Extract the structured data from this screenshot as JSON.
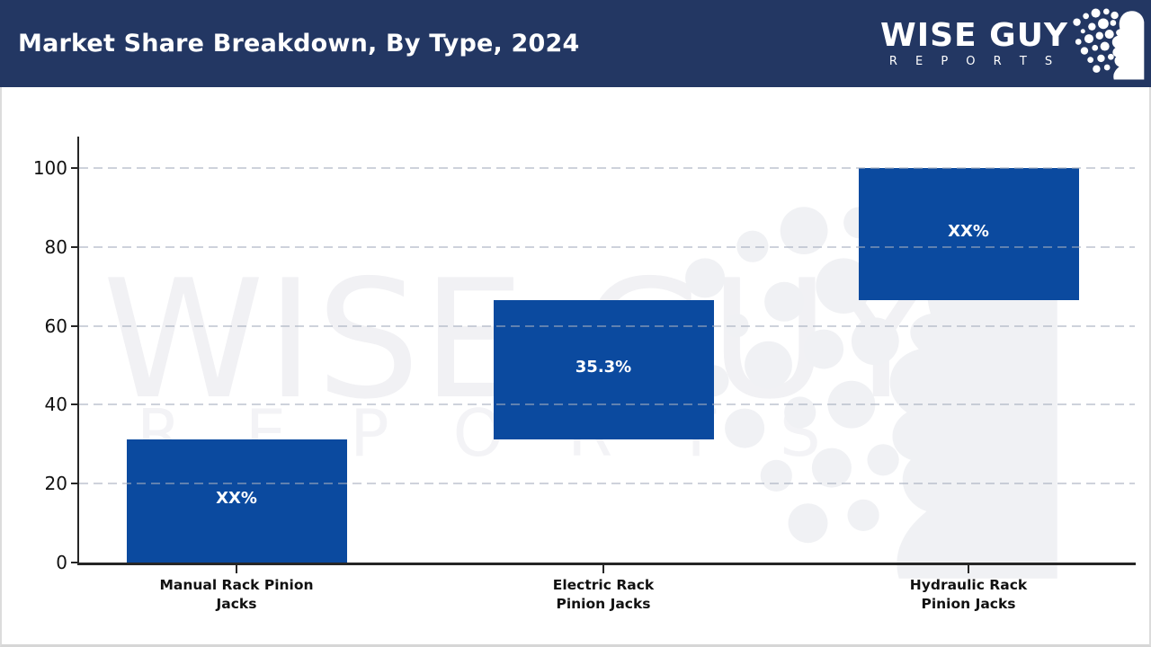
{
  "header": {
    "title": "Market Share Breakdown, By Type, 2024",
    "logo": {
      "name_line": "WISE GUY",
      "sub_line": "R E P O R T S"
    }
  },
  "watermark": {
    "name_line": "WISE GUY",
    "sub_line": "R E P O R T S"
  },
  "chart_data": {
    "type": "bar",
    "variant": "waterfall",
    "title": "Market Share Breakdown, By Type, 2024",
    "categories": [
      [
        "Manual Rack Pinion",
        "Jacks"
      ],
      [
        "Electric Rack",
        "Pinion Jacks"
      ],
      [
        "Hydraulic Rack",
        "Pinion Jacks"
      ]
    ],
    "bars": [
      {
        "start": 0,
        "end": 31.3,
        "label": "XX%"
      },
      {
        "start": 31.3,
        "end": 66.6,
        "label": "35.3%"
      },
      {
        "start": 66.6,
        "end": 100,
        "label": "XX%"
      }
    ],
    "ylim": [
      0,
      100
    ],
    "yticks": [
      0,
      20,
      40,
      60,
      80,
      100
    ],
    "grid": {
      "axis": "y",
      "style": "dashed"
    },
    "legend": "none",
    "bar_color": "#0b4a9f",
    "bar_label_color": "#ffffff",
    "header_color": "#233763",
    "axis_color": "#262626"
  }
}
